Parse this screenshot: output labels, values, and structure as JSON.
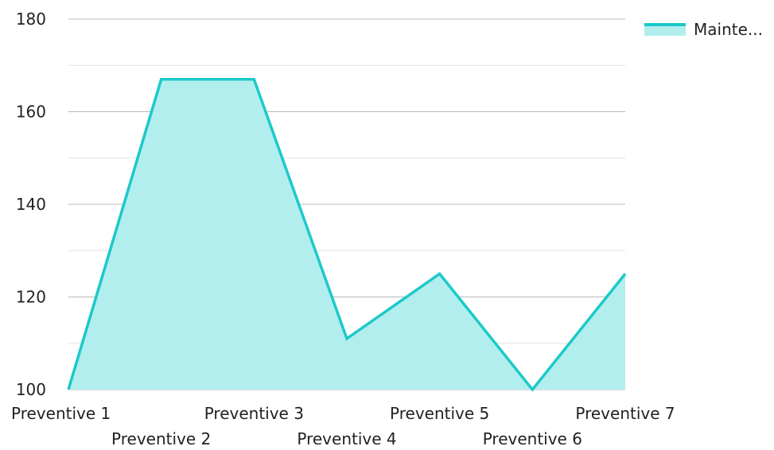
{
  "chart_data": {
    "type": "area",
    "categories": [
      "Preventive 1",
      "Preventive 2",
      "Preventive 3",
      "Preventive 4",
      "Preventive 5",
      "Preventive 6",
      "Preventive 7"
    ],
    "series": [
      {
        "name": "Mainte...",
        "values": [
          100,
          167,
          167,
          111,
          125,
          100,
          125
        ]
      }
    ],
    "ylim": [
      100,
      180
    ],
    "yticks": [
      100,
      120,
      140,
      160,
      180
    ],
    "minor_gridlines": true,
    "legend_position": "top-right",
    "colors": {
      "line": "#1dc9c9",
      "fill": "#b2eeee",
      "gridline": "#b8b8b8",
      "minor_gridline": "#e2e2e2",
      "text": "#222222"
    }
  }
}
